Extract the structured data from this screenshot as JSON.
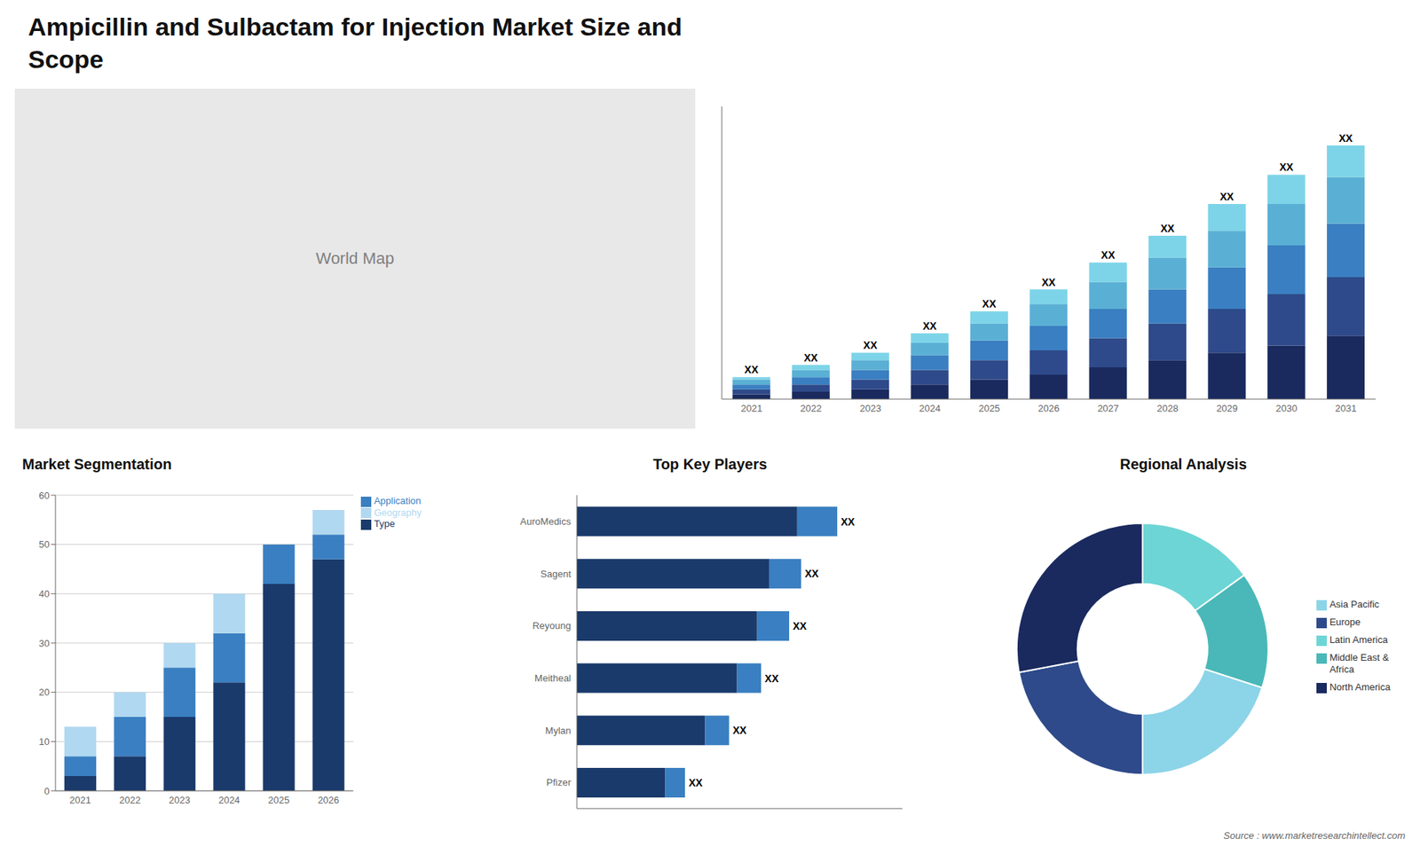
{
  "title": "Ampicillin and Sulbactam for Injection Market Size and\nScope",
  "annotations": [
    "Source : www.marketresearchintellect.com"
  ],
  "chart_data": [
    {
      "type": "map",
      "annotations": [
        "World Map"
      ],
      "color": "#e8e8e8"
    },
    {
      "type": "bar",
      "stacked": true,
      "categories": [
        "2021",
        "2022",
        "2023",
        "2024",
        "2025",
        "2026",
        "2027",
        "2028",
        "2029",
        "2030",
        "2031"
      ],
      "series": [
        {
          "color": "#1a2a5e",
          "values": [
            2,
            3,
            4,
            6,
            8,
            10,
            13,
            16,
            19,
            22,
            26
          ]
        },
        {
          "color": "#2e4a8a",
          "values": [
            2,
            3,
            4,
            6,
            8,
            10,
            12,
            15,
            18,
            21,
            24
          ]
        },
        {
          "color": "#3a7fc1",
          "values": [
            2,
            3,
            4,
            6,
            8,
            10,
            12,
            14,
            17,
            20,
            22
          ]
        },
        {
          "color": "#5ab0d4",
          "values": [
            2,
            3,
            4,
            5,
            7,
            9,
            11,
            13,
            15,
            17,
            19
          ]
        },
        {
          "color": "#7dd4e8",
          "values": [
            1,
            2,
            3,
            4,
            5,
            6,
            8,
            9,
            11,
            12,
            13
          ],
          "value_labels": [
            "XX",
            "XX",
            "XX",
            "XX",
            "XX",
            "XX",
            "XX",
            "XX",
            "XX",
            "XX",
            "XX"
          ]
        }
      ],
      "ylim": [
        0,
        120
      ],
      "tick_labels": "x"
    },
    {
      "type": "bar",
      "title": "Market Segmentation",
      "stacked": true,
      "categories": [
        "2021",
        "2022",
        "2023",
        "2024",
        "2025",
        "2026"
      ],
      "series": [
        {
          "name": "Type",
          "color": "#1a3a6b",
          "values": [
            3,
            7,
            15,
            22,
            42,
            47
          ]
        },
        {
          "name": "Application",
          "color": "#3a7fc1",
          "values": [
            4,
            8,
            10,
            10,
            8,
            5
          ]
        },
        {
          "name": "Geography",
          "color": "#b0d8f0",
          "values": [
            6,
            5,
            5,
            8,
            0,
            5
          ]
        }
      ],
      "ylim": [
        0,
        60
      ],
      "yticks": [
        0,
        10,
        20,
        30,
        40,
        50,
        60
      ],
      "grid": true,
      "legend": "upper right"
    },
    {
      "type": "bar",
      "title": "Top Key Players",
      "orientation": "horizontal",
      "stacked": true,
      "categories": [
        "AuroMedics",
        "Sagent",
        "Reyoung",
        "Meitheal",
        "Mylan",
        "Pfizer"
      ],
      "series": [
        {
          "color": "#1a3a6b",
          "values": [
            55,
            48,
            45,
            40,
            32,
            22
          ]
        },
        {
          "color": "#3a7fc1",
          "values": [
            10,
            8,
            8,
            6,
            6,
            5
          ],
          "value_labels": [
            "XX",
            "XX",
            "XX",
            "XX",
            "XX",
            "XX"
          ]
        }
      ],
      "xlim": [
        0,
        81.25
      ],
      "tick_labels": "y"
    },
    {
      "type": "pie",
      "title": "Regional Analysis",
      "categories": [
        "Latin America",
        "Middle East &\nAfrica",
        "Asia Pacific",
        "Europe",
        "North America"
      ],
      "values": [
        15,
        15,
        20,
        22,
        28
      ],
      "colors": [
        "#6dd5d5",
        "#4ab8b8",
        "#8cd4e8",
        "#2e4a8a",
        "#1a2a5e"
      ],
      "legend": "right"
    }
  ]
}
